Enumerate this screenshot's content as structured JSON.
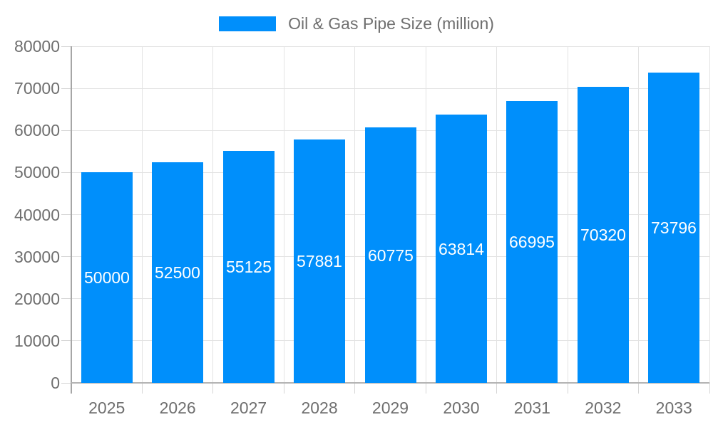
{
  "legend": {
    "label": "Oil & Gas Pipe Size (million)",
    "swatch_color": "#008FFB"
  },
  "chart_data": {
    "type": "bar",
    "title": "Oil & Gas Pipe Size (million)",
    "categories": [
      "2025",
      "2026",
      "2027",
      "2028",
      "2029",
      "2030",
      "2031",
      "2032",
      "2033"
    ],
    "series": [
      {
        "name": "Oil & Gas Pipe Size (million)",
        "values": [
          50000,
          52500,
          55125,
          57881,
          60775,
          63814,
          66995,
          70320,
          73796
        ]
      }
    ],
    "values": [
      50000,
      52500,
      55125,
      57881,
      60775,
      63814,
      66995,
      70320,
      73796
    ],
    "data_labels": [
      "50000",
      "52500",
      "55125",
      "57881",
      "60775",
      "63814",
      "66995",
      "70320",
      "73796"
    ],
    "xlabel": "",
    "ylabel": "",
    "ylim": [
      0,
      80000
    ],
    "ytick_step": 10000,
    "yticks": [
      0,
      10000,
      20000,
      30000,
      40000,
      50000,
      60000,
      70000,
      80000
    ],
    "grid": true,
    "legend_position": "top-center",
    "bar_color": "#008FFB",
    "data_label_color": "#ffffff",
    "axis_label_color": "#6f6f6f",
    "gridline_color": "#e3e3e3"
  }
}
